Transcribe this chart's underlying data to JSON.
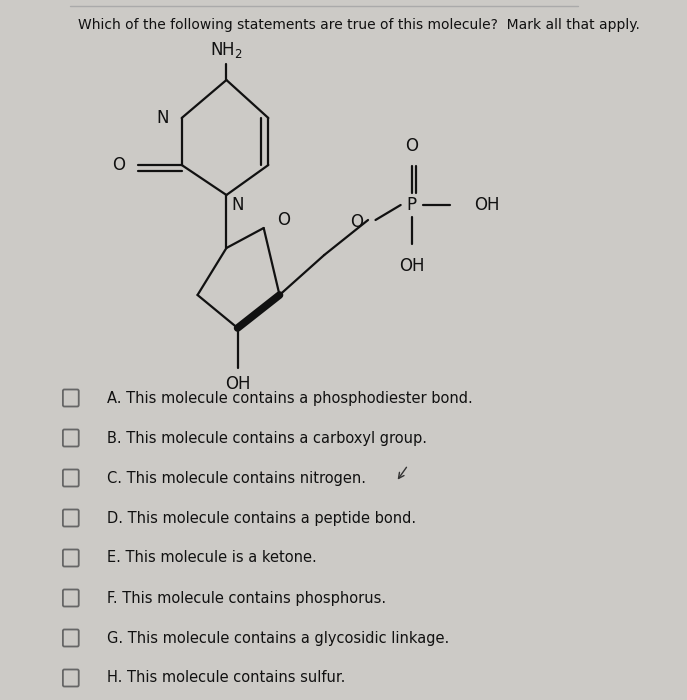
{
  "title": "Which of the following statements are true of this molecule?  Mark all that apply.",
  "background_color": "#cccac6",
  "options": [
    "A. This molecule contains a phosphodiester bond.",
    "B. This molecule contains a carboxyl group.",
    "C. This molecule contains nitrogen.",
    "D. This molecule contains a peptide bond.",
    "E. This molecule is a ketone.",
    "F. This molecule contains phosphorus.",
    "G. This molecule contains a glycosidic linkage.",
    "H. This molecule contains sulfur."
  ],
  "molecule_color": "#111111",
  "lw": 1.6,
  "bold_lw": 5.5,
  "checkbox_size": 14,
  "checkbox_color": "#666666",
  "text_color": "#111111",
  "title_color": "#111111"
}
